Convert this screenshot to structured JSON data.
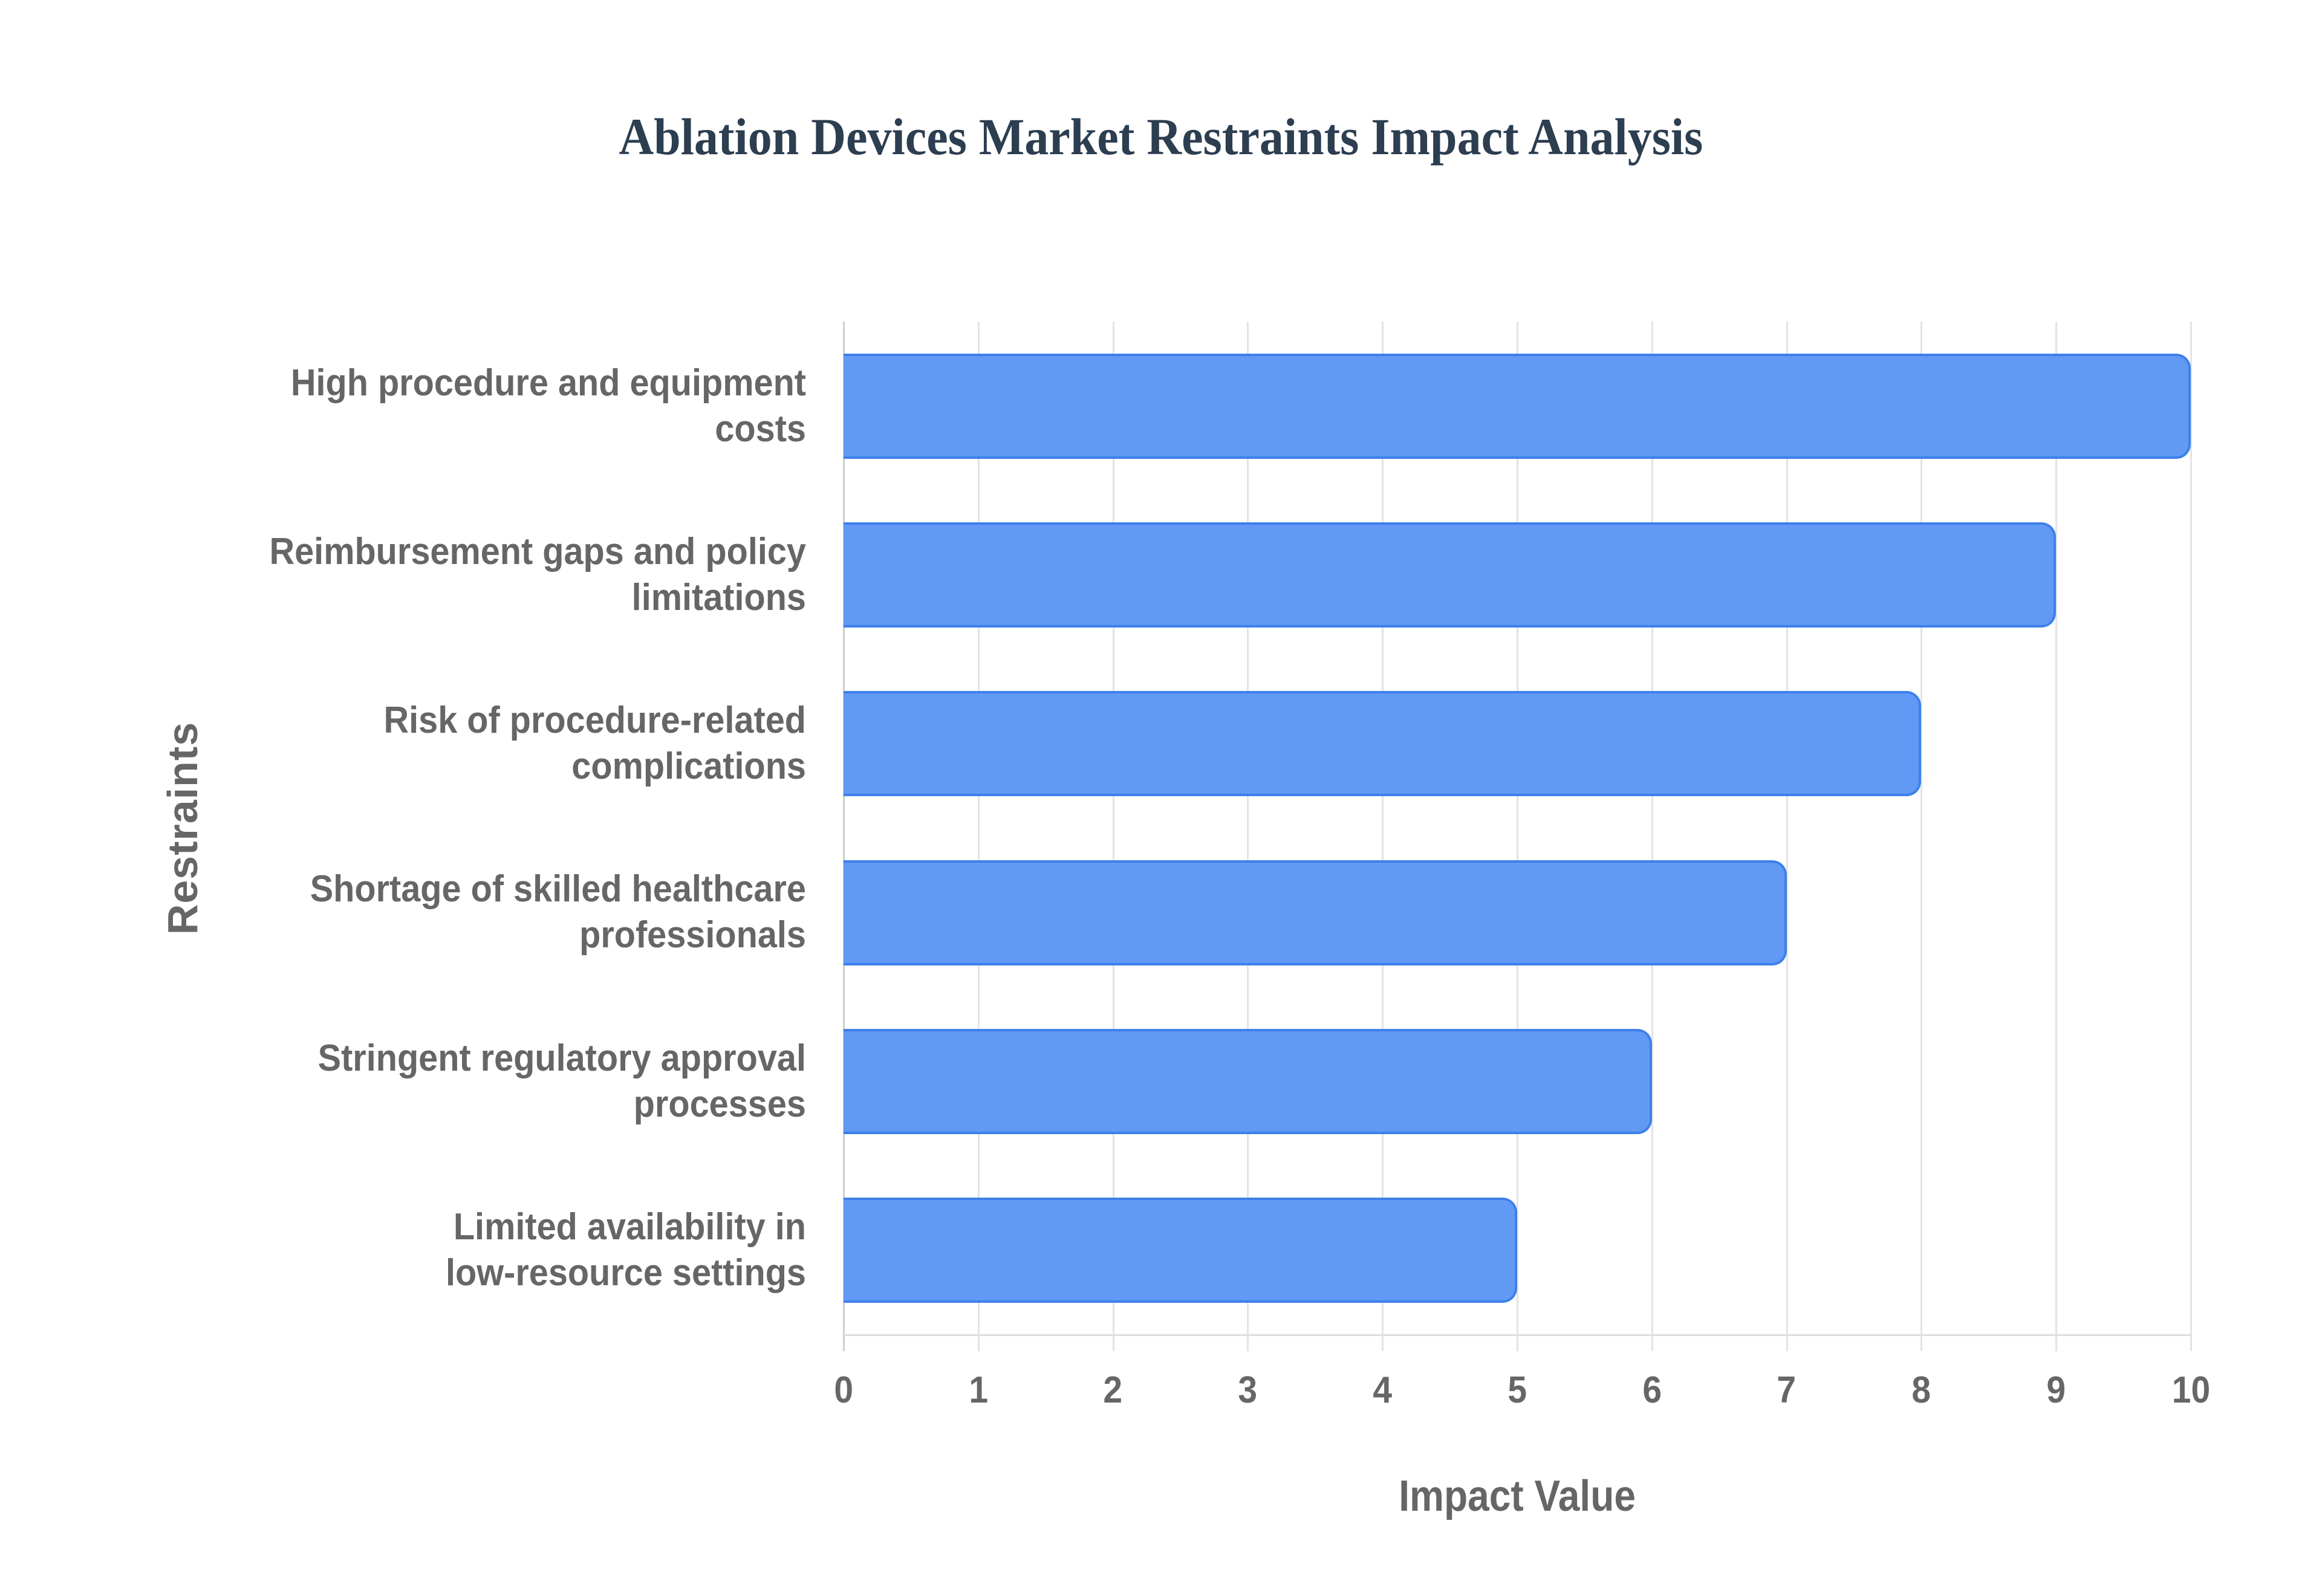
{
  "title": "Ablation Devices Market Restraints Impact Analysis",
  "axes": {
    "x_title": "Impact Value",
    "y_title": "Restraints",
    "x_ticks": [
      "0",
      "1",
      "2",
      "3",
      "4",
      "5",
      "6",
      "7",
      "8",
      "9",
      "10"
    ]
  },
  "categories": [
    {
      "line1": "High procedure and equipment",
      "line2": "costs"
    },
    {
      "line1": "Reimbursement gaps and policy",
      "line2": "limitations"
    },
    {
      "line1": "Risk of procedure-related",
      "line2": "complications"
    },
    {
      "line1": "Shortage of skilled healthcare",
      "line2": "professionals"
    },
    {
      "line1": "Stringent regulatory approval",
      "line2": "processes"
    },
    {
      "line1": "Limited availability in",
      "line2": "low-resource settings"
    }
  ],
  "colors": {
    "bar_fill": "#6299f5",
    "bar_border": "#3d80ea",
    "title": "#2c3e50",
    "axis_text": "#666666",
    "grid": "#e3e3e3"
  },
  "chart_data": {
    "type": "bar",
    "orientation": "horizontal",
    "title": "Ablation Devices Market Restraints Impact Analysis",
    "xlabel": "Impact Value",
    "ylabel": "Restraints",
    "categories": [
      "High procedure and equipment costs",
      "Reimbursement gaps and policy limitations",
      "Risk of procedure-related complications",
      "Shortage of skilled healthcare professionals",
      "Stringent regulatory approval processes",
      "Limited availability in low-resource settings"
    ],
    "values": [
      10,
      9,
      8,
      7,
      6,
      5
    ],
    "xlim": [
      0,
      10
    ],
    "x_ticks": [
      0,
      1,
      2,
      3,
      4,
      5,
      6,
      7,
      8,
      9,
      10
    ],
    "grid": {
      "vertical": true,
      "horizontal": false
    },
    "legend": null
  }
}
